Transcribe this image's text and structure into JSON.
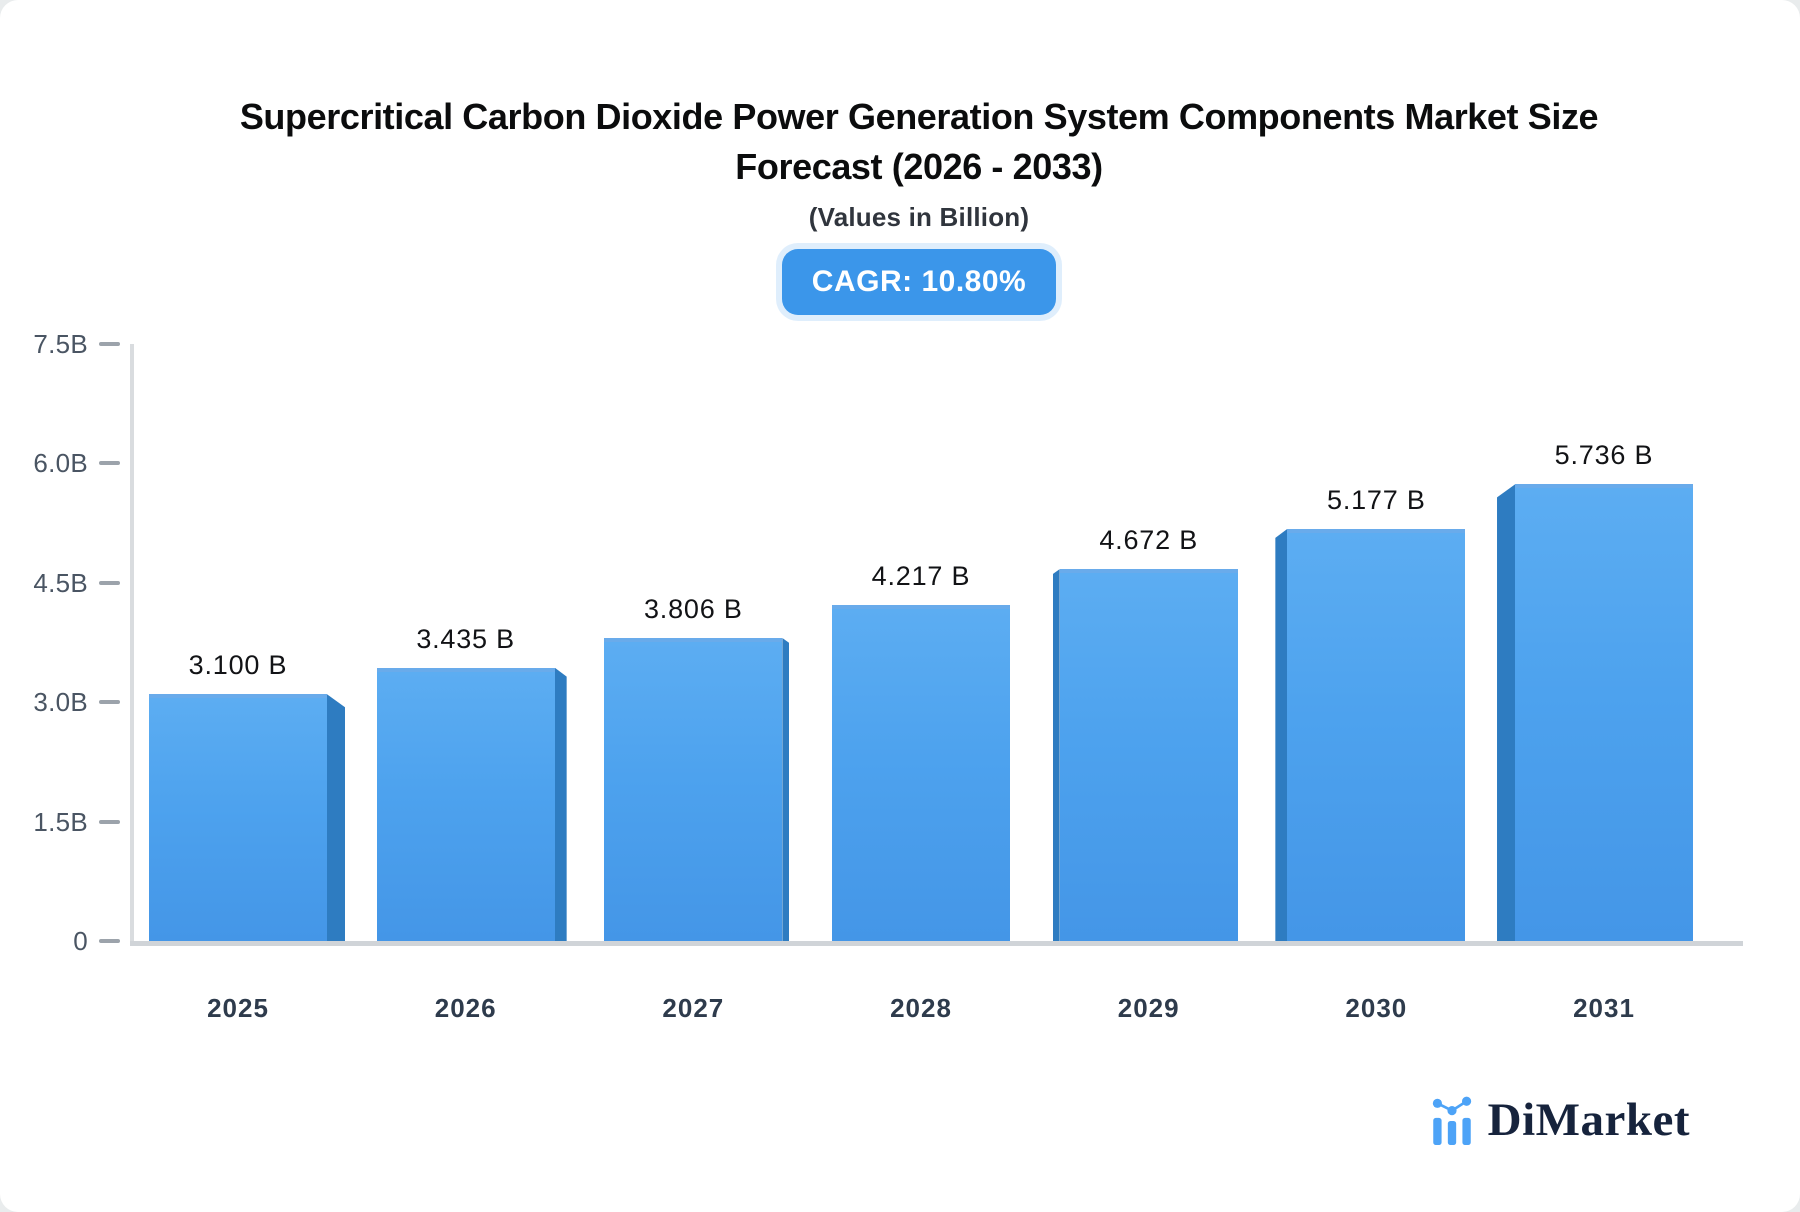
{
  "header": {
    "title_line1": "Supercritical Carbon Dioxide Power Generation System Components Market Size",
    "title_line2": "Forecast (2026 - 2033)",
    "subtitle": "(Values in Billion)",
    "cagr_badge": "CAGR: 10.80%"
  },
  "chart_data": {
    "type": "bar",
    "title": "Supercritical Carbon Dioxide Power Generation System Components Market Size Forecast (2026 - 2033)",
    "subtitle": "(Values in Billion)",
    "cagr_percent": "10.80%",
    "unit": "Billion",
    "categories": [
      "2025",
      "2026",
      "2027",
      "2028",
      "2029",
      "2030",
      "2031"
    ],
    "values": [
      3.1,
      3.435,
      3.806,
      4.217,
      4.672,
      5.177,
      5.736
    ],
    "labels": [
      "3.100 B",
      "3.435 B",
      "3.806 B",
      "4.217 B",
      "4.672 B",
      "5.177 B",
      "5.736 B"
    ],
    "xlabel": "",
    "ylabel": "",
    "ylim": [
      0,
      7.5
    ],
    "y_ticks": [
      0,
      1.5,
      3.0,
      4.5,
      6.0,
      7.5
    ],
    "y_tick_labels": [
      "0",
      "1.5B",
      "3.0B",
      "4.5B",
      "6.0B",
      "7.5B"
    ],
    "grid": false,
    "legend": false,
    "bar_color": "#4DA2EE",
    "bar_side_color": "#2E7CC1"
  },
  "branding": {
    "logo_text": "DiMarket",
    "logo_icon": "mini-bar-chart-icon",
    "logo_blue": "#4DA3F7"
  },
  "colors": {
    "badge_bg": "#3B96EA",
    "badge_text": "#FFFFFF",
    "axis_line": "#D9DCDF",
    "tick_mark": "#9CA3AB",
    "y_label": "#4A5563",
    "x_label": "#2E3B4C",
    "value_label": "#121316",
    "title": "#0B0C0D"
  }
}
